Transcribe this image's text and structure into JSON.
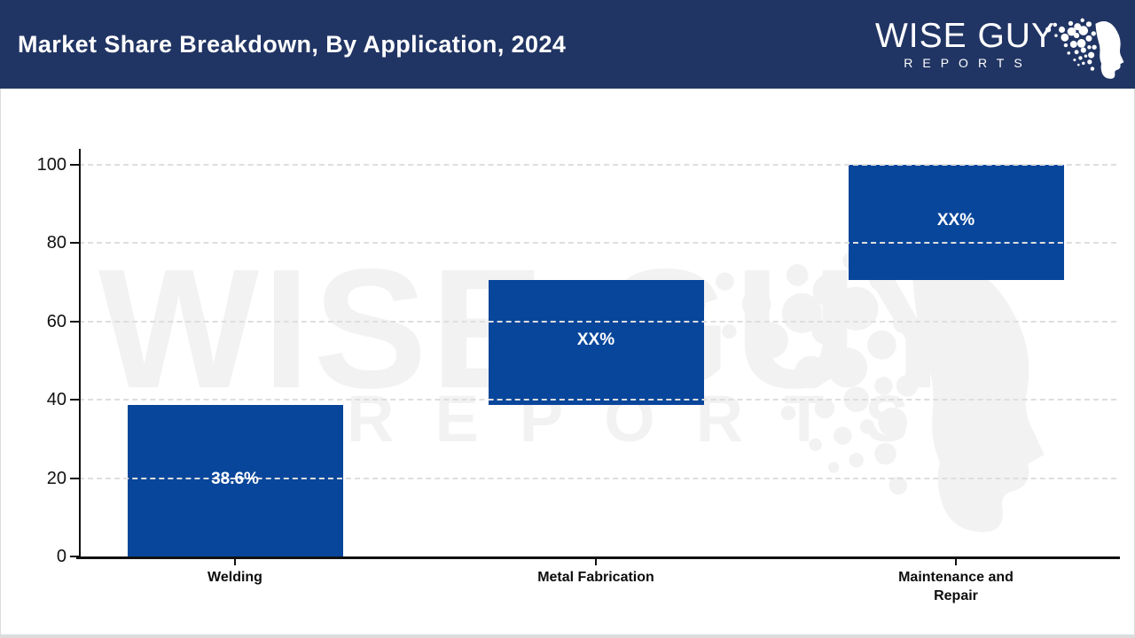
{
  "header": {
    "title": "Market Share Breakdown, By Application, 2024",
    "logo": {
      "line1": "WISE GUY",
      "line2": "REPORTS"
    }
  },
  "watermark": {
    "line1": "WISE GUY",
    "line2": "REPORTS"
  },
  "colors": {
    "header_bg": "#213564",
    "bar": "#08469b",
    "bar_label": "#ffffff",
    "grid": "#dedede",
    "axis": "#111111",
    "watermark": "#f2f2f3"
  },
  "chart_data": {
    "type": "bar",
    "subtype": "waterfall",
    "title": "Market Share Breakdown, By Application, 2024",
    "xlabel": "",
    "ylabel": "",
    "ylim": [
      0,
      100
    ],
    "yticks": [
      0,
      20,
      40,
      60,
      80,
      100
    ],
    "grid": "horizontal-dashed",
    "legend": "none",
    "categories": [
      "Welding",
      "Metal Fabrication",
      "Maintenance and Repair"
    ],
    "segments": [
      {
        "category": "Welding",
        "start": 0,
        "end": 38.6,
        "label": "38.6%"
      },
      {
        "category": "Metal Fabrication",
        "start": 38.6,
        "end": 70.7,
        "label": "XX%"
      },
      {
        "category": "Maintenance and Repair",
        "start": 70.7,
        "end": 100,
        "label": "XX%"
      }
    ]
  }
}
